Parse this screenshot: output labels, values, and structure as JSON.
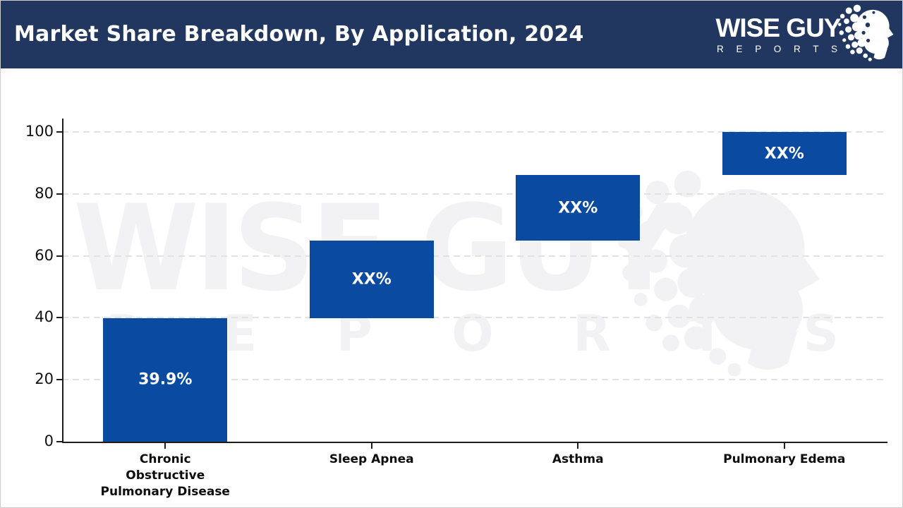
{
  "header": {
    "title": "Market Share Breakdown, By Application, 2024",
    "logo": {
      "name": "WISE GUY",
      "sub": "R E P O R T S"
    }
  },
  "watermark": {
    "line1": "WISE GUY",
    "line2": "R E P O R T S"
  },
  "chart_data": {
    "type": "bar",
    "subtype": "waterfall",
    "title": "Market Share Breakdown, By Application, 2024",
    "categories": [
      "Chronic Obstructive Pulmonary Disease",
      "Sleep Apnea",
      "Asthma",
      "Pulmonary Edema"
    ],
    "bars": [
      {
        "category": "Chronic Obstructive Pulmonary Disease",
        "start": 0,
        "end": 39.9,
        "label": "39.9%"
      },
      {
        "category": "Sleep Apnea",
        "start": 39.9,
        "end": 65,
        "label": "XX%"
      },
      {
        "category": "Asthma",
        "start": 65,
        "end": 86,
        "label": "XX%"
      },
      {
        "category": "Pulmonary Edema",
        "start": 86,
        "end": 100,
        "label": "XX%"
      }
    ],
    "yticks": [
      0,
      20,
      40,
      60,
      80,
      100
    ],
    "ylim": [
      0,
      104
    ],
    "xlabel": "",
    "ylabel": "",
    "grid": "horizontal-dashed",
    "legend": "none",
    "bar_color": "#0b4aa1"
  },
  "colors": {
    "header_background": "#223760",
    "bar": "#0b4aa1",
    "bar_label_text": "#ffffff",
    "gridline": "#e2e2e2",
    "axis": "#1c1c1c",
    "watermark": "#f2f2f4",
    "page_background": "#ffffff"
  }
}
